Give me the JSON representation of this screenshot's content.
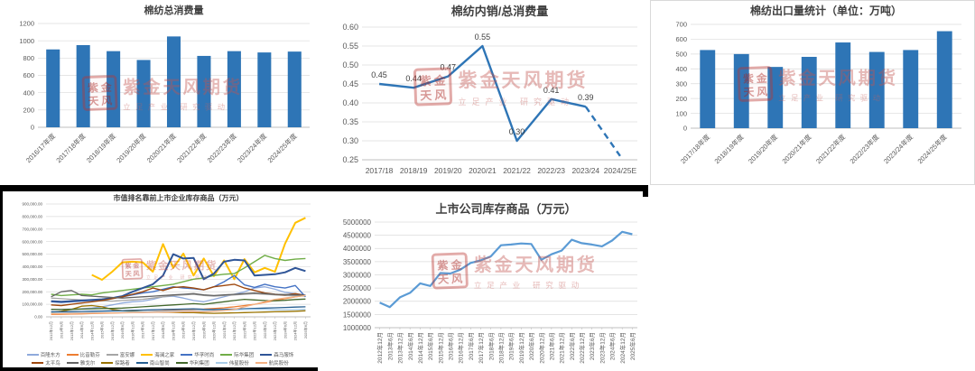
{
  "watermark": {
    "seal_text": "紫金天风",
    "brand": "紫金天风期货",
    "slogan": "立足产业 研究驱动",
    "color": "#BE4B48"
  },
  "chart_data": [
    {
      "id": "cotton-total-consumption",
      "type": "bar",
      "title": "棉纺总消费量",
      "categories": [
        "2016/17年度",
        "2017/18年度",
        "2018/19年度",
        "2019/20年度",
        "2020/21年度",
        "2021/22年度",
        "2022/23年度",
        "2023/24年度",
        "2024/25年度"
      ],
      "values": [
        900,
        950,
        880,
        778,
        1050,
        825,
        880,
        865,
        875
      ],
      "ylim": [
        0,
        1200
      ],
      "ystep": 200,
      "yticks": [
        "0",
        "200",
        "400",
        "600",
        "800",
        "1000",
        "1200"
      ],
      "yformat": "int",
      "bar_color": "#2E75B6",
      "grid": true,
      "legend_position": "none"
    },
    {
      "id": "domestic-share-of-consumption",
      "type": "line",
      "title": "棉纺内销/总消费量",
      "categories": [
        "2017/18",
        "2018/19",
        "2019/20",
        "2020/21",
        "2021/22",
        "2022/23",
        "2023/24",
        "2024/25E"
      ],
      "values": [
        0.45,
        0.44,
        0.47,
        0.55,
        0.3,
        0.41,
        0.39,
        0.26
      ],
      "data_labels": [
        "0.45",
        "0.44",
        "0.47",
        "0.55",
        "0.30",
        "0.41",
        "0.39",
        ""
      ],
      "dashed_from_index": 6,
      "ylim": [
        0.25,
        0.6
      ],
      "ystep": 0.05,
      "yticks": [
        "0.25",
        "0.30",
        "0.35",
        "0.40",
        "0.45",
        "0.50",
        "0.55",
        "0.60"
      ],
      "yformat": "dec2",
      "line_color": "#2E75B6",
      "grid": true,
      "legend_position": "none"
    },
    {
      "id": "cotton-export-volume",
      "type": "bar",
      "title": "棉纺出口量统计（单位：万吨）",
      "categories": [
        "2017/18年度",
        "2018/19年度",
        "2019/20年度",
        "2020/21年度",
        "2021/22年度",
        "2022/23年度",
        "2023/24年度",
        "2024/25年度"
      ],
      "values": [
        527,
        500,
        413,
        481,
        578,
        514,
        527,
        654
      ],
      "ylim": [
        0,
        700
      ],
      "ystep": 100,
      "yticks": [
        "0",
        "100",
        "200",
        "300",
        "400",
        "500",
        "600",
        "700"
      ],
      "yformat": "int",
      "bar_color": "#2E75B6",
      "grid": true,
      "legend_position": "none"
    },
    {
      "id": "top-listed-companies-inventory",
      "type": "multi-line",
      "title": "市值排名靠前上市企业库存商品（万元）",
      "x": [
        "2012年12月",
        "2013年6月",
        "2013年12月",
        "2014年6月",
        "2014年12月",
        "2015年6月",
        "2015年12月",
        "2016年6月",
        "2016年12月",
        "2017年6月",
        "2017年12月",
        "2018年6月",
        "2018年12月",
        "2019年6月",
        "2019年12月",
        "2020年6月",
        "2020年12月",
        "2021年6月",
        "2021年12月",
        "2022年6月",
        "2022年12月",
        "2023年6月",
        "2023年12月",
        "2024年6月",
        "2024年12月",
        "2025年6月"
      ],
      "ylim": [
        0,
        900000
      ],
      "ystep": 100000,
      "yticks": [
        "0.00",
        "100,000.00",
        "200,000.00",
        "300,000.00",
        "400,000.00",
        "500,000.00",
        "600,000.00",
        "700,000.00",
        "800,000.00",
        "900,000.00"
      ],
      "yformat": "comma2",
      "grid": true,
      "legend_position": "bottom",
      "series": [
        {
          "name": "百隆东方",
          "color": "#8FAADC",
          "width": 1.3,
          "values": [
            58000,
            60000,
            62000,
            65000,
            70000,
            80000,
            95000,
            110000,
            120000,
            125000,
            140000,
            160000,
            165000,
            150000,
            130000,
            120000,
            140000,
            160000,
            180000,
            200000,
            230000,
            240000,
            220000,
            195000,
            185000,
            175000
          ]
        },
        {
          "name": "比音勒芬",
          "color": "#ED7D31",
          "width": 1.3,
          "values": [
            20000,
            21000,
            22000,
            24000,
            26000,
            28000,
            30000,
            33000,
            36000,
            40000,
            44000,
            48000,
            52000,
            56000,
            60000,
            62000,
            66000,
            72000,
            80000,
            90000,
            100000,
            115000,
            130000,
            145000,
            160000,
            172000
          ]
        },
        {
          "name": "富安娜",
          "color": "#A5A5A5",
          "width": 1.3,
          "values": [
            150000,
            145000,
            140000,
            135000,
            130000,
            128000,
            125000,
            130000,
            135000,
            140000,
            150000,
            160000,
            170000,
            175000,
            180000,
            170000,
            165000,
            170000,
            175000,
            180000,
            185000,
            180000,
            175000,
            170000,
            168000,
            165000
          ]
        },
        {
          "name": "海澜之家",
          "color": "#FFC000",
          "width": 2,
          "values": [
            null,
            null,
            null,
            null,
            335000,
            295000,
            360000,
            435000,
            440000,
            435000,
            360000,
            580000,
            390000,
            505000,
            330000,
            465000,
            325000,
            450000,
            300000,
            460000,
            355000,
            390000,
            360000,
            585000,
            750000,
            790000
          ]
        },
        {
          "name": "华孚时尚",
          "color": "#4472C4",
          "width": 1.4,
          "values": [
            120000,
            115000,
            120000,
            125000,
            130000,
            140000,
            150000,
            160000,
            175000,
            190000,
            200000,
            220000,
            240000,
            230000,
            225000,
            215000,
            240000,
            280000,
            330000,
            255000,
            235000,
            260000,
            240000,
            230000,
            250000,
            160000
          ]
        },
        {
          "name": "际华集团",
          "color": "#70AD47",
          "width": 1.4,
          "values": [
            180000,
            170000,
            175000,
            180000,
            175000,
            190000,
            200000,
            210000,
            220000,
            230000,
            240000,
            250000,
            260000,
            280000,
            300000,
            310000,
            330000,
            340000,
            345000,
            390000,
            440000,
            490000,
            465000,
            450000,
            460000,
            465000
          ]
        },
        {
          "name": "森马服饰",
          "color": "#2F5597",
          "width": 2,
          "values": [
            125000,
            120000,
            125000,
            130000,
            135000,
            140000,
            150000,
            165000,
            200000,
            230000,
            260000,
            330000,
            500000,
            465000,
            470000,
            300000,
            345000,
            440000,
            455000,
            450000,
            330000,
            335000,
            340000,
            355000,
            390000,
            365000
          ]
        },
        {
          "name": "太平鸟",
          "color": "#9E480E",
          "width": 1.4,
          "values": [
            95000,
            90000,
            100000,
            110000,
            120000,
            130000,
            145000,
            160000,
            180000,
            200000,
            230000,
            210000,
            235000,
            240000,
            230000,
            215000,
            240000,
            250000,
            260000,
            230000,
            210000,
            190000,
            180000,
            175000,
            185000,
            170000
          ]
        },
        {
          "name": "雅戈尔",
          "color": "#636363",
          "width": 1.3,
          "values": [
            160000,
            200000,
            210000,
            170000,
            165000,
            160000,
            155000,
            150000,
            155000,
            160000,
            165000,
            170000,
            175000,
            180000,
            185000,
            175000,
            170000,
            175000,
            180000,
            185000,
            190000,
            185000,
            180000,
            178000,
            175000,
            172000
          ]
        },
        {
          "name": "探路者",
          "color": "#997300",
          "width": 1.3,
          "values": [
            35000,
            45000,
            60000,
            85000,
            90000,
            80000,
            60000,
            50000,
            45000,
            40000,
            38000,
            36000,
            35000,
            34000,
            33000,
            30000,
            28000,
            30000,
            32000,
            34000,
            36000,
            38000,
            40000,
            42000,
            45000,
            48000
          ]
        },
        {
          "name": "南山智尚",
          "color": "#255E91",
          "width": 1.3,
          "values": [
            40000,
            40000,
            42000,
            43000,
            45000,
            46000,
            48000,
            50000,
            52000,
            54000,
            56000,
            58000,
            60000,
            62000,
            64000,
            60000,
            58000,
            60000,
            62000,
            65000,
            68000,
            70000,
            72000,
            75000,
            78000,
            80000
          ]
        },
        {
          "name": "华利集团",
          "color": "#43682B",
          "width": 1.3,
          "values": [
            60000,
            58000,
            60000,
            62000,
            64000,
            66000,
            68000,
            70000,
            75000,
            80000,
            85000,
            90000,
            95000,
            100000,
            105000,
            100000,
            110000,
            120000,
            130000,
            140000,
            135000,
            130000,
            128000,
            132000,
            138000,
            142000
          ]
        },
        {
          "name": "伟星股份",
          "color": "#A9CCE8",
          "width": 1.3,
          "values": [
            30000,
            30000,
            31000,
            32000,
            33000,
            34000,
            35000,
            36000,
            38000,
            40000,
            42000,
            44000,
            46000,
            48000,
            50000,
            48000,
            50000,
            52000,
            55000,
            58000,
            60000,
            58000,
            56000,
            57000,
            58000,
            60000
          ]
        },
        {
          "name": "航民股份",
          "color": "#F4B183",
          "width": 1.3,
          "values": [
            25000,
            26000,
            27000,
            28000,
            29000,
            30000,
            31000,
            32000,
            33000,
            34000,
            35000,
            36000,
            38000,
            40000,
            42000,
            40000,
            45000,
            50000,
            60000,
            80000,
            100000,
            120000,
            140000,
            150000,
            160000,
            170000
          ]
        }
      ]
    },
    {
      "id": "listed-companies-inventory-total",
      "type": "line",
      "title": "上市公司库存商品（万元）",
      "categories": [
        "2012年12月",
        "2013年6月",
        "2013年12月",
        "2014年6月",
        "2014年12月",
        "2015年6月",
        "2015年12月",
        "2016年6月",
        "2016年12月",
        "2017年6月",
        "2017年12月",
        "2018年6月",
        "2018年12月",
        "2019年6月",
        "2019年12月",
        "2020年6月",
        "2020年12月",
        "2021年6月",
        "2021年12月",
        "2022年6月",
        "2022年12月",
        "2023年6月",
        "2023年12月",
        "2024年6月",
        "2024年12月",
        "2025年6月"
      ],
      "values": [
        1950000,
        1780000,
        2150000,
        2320000,
        2680000,
        2580000,
        3070000,
        3050000,
        3200000,
        3450000,
        3550000,
        3700000,
        4120000,
        4150000,
        4190000,
        4170000,
        3570000,
        3780000,
        3920000,
        4330000,
        4200000,
        4150000,
        4080000,
        4300000,
        4630000,
        4540000
      ],
      "data_labels": [],
      "ylim": [
        1000000,
        5000000
      ],
      "ystep": 500000,
      "yticks": [
        "1000000",
        "1500000",
        "2000000",
        "2500000",
        "3000000",
        "3500000",
        "4000000",
        "4500000",
        "5000000"
      ],
      "yformat": "int",
      "line_color": "#5B9BD5",
      "grid": true,
      "legend_position": "none"
    }
  ]
}
